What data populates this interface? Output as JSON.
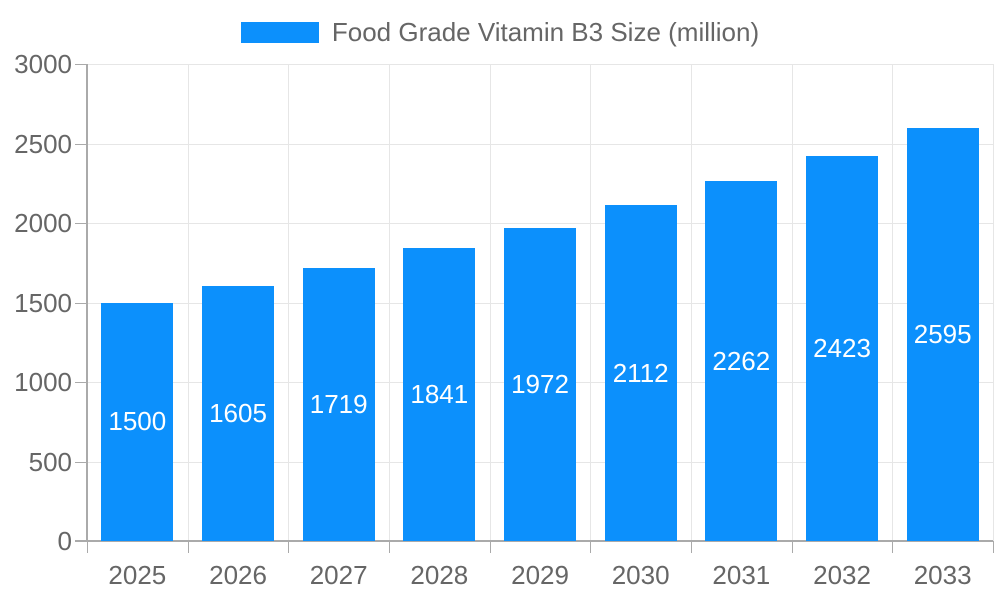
{
  "legend": {
    "label": "Food Grade Vitamin B3 Size (million)",
    "swatch_color": "#0c90fc"
  },
  "chart_data": {
    "type": "bar",
    "title": "",
    "categories": [
      "2025",
      "2026",
      "2027",
      "2028",
      "2029",
      "2030",
      "2031",
      "2032",
      "2033"
    ],
    "series": [
      {
        "name": "Food Grade Vitamin B3 Size (million)",
        "values": [
          1500,
          1605,
          1719,
          1841,
          1972,
          2112,
          2262,
          2423,
          2595
        ]
      }
    ],
    "xlabel": "",
    "ylabel": "",
    "ylim": [
      0,
      3000
    ],
    "yticks": [
      0,
      500,
      1000,
      1500,
      2000,
      2500,
      3000
    ],
    "grid": true,
    "legend_position": "top",
    "value_labels": "inside-center",
    "colors": {
      "bar": "#0c90fc",
      "bar_label": "#ffffff",
      "axis_text": "#666666",
      "legend_text": "#666666",
      "grid_line": "#e6e6e6",
      "axis_line": "#aaaaaa",
      "background": "#ffffff"
    }
  }
}
